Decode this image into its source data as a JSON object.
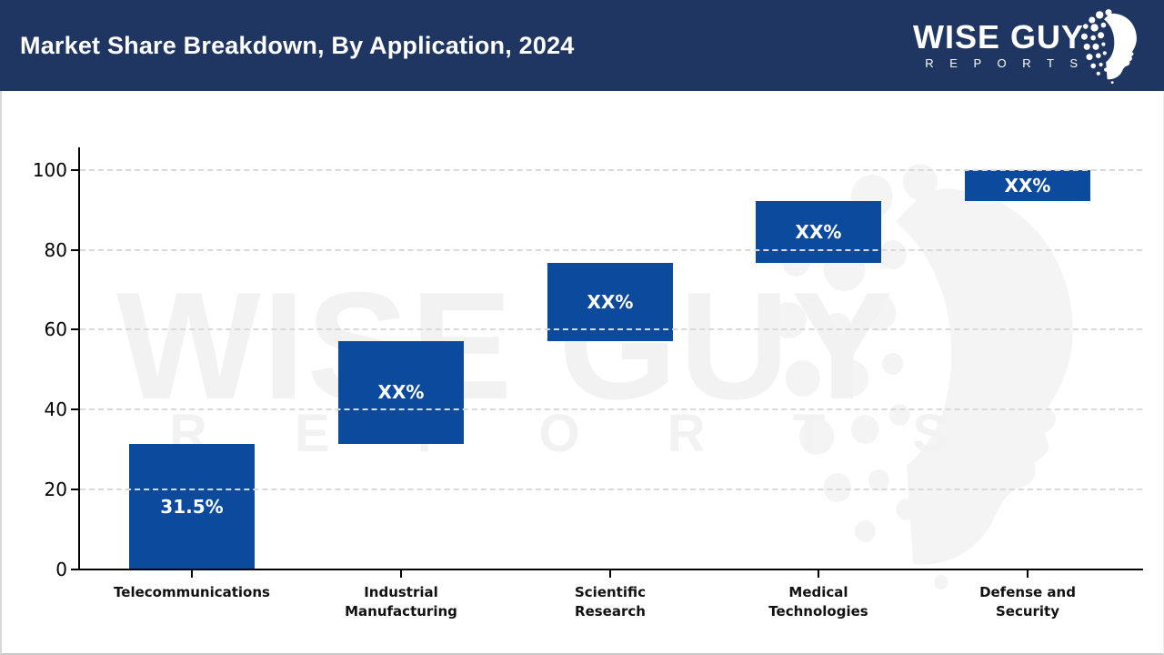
{
  "header": {
    "title": "Market Share Breakdown, By Application, 2024",
    "logo": {
      "name_top": "WISE GUY",
      "name_bottom": "R E P O R T S"
    }
  },
  "watermark": {
    "big_text": "WISE GUY",
    "sub_text": "R E P O R T S"
  },
  "colors": {
    "header_bg": "#203662",
    "bar_fill": "#0c4a9e",
    "grid_line": "#d9d9d9",
    "axis_line": "#000000",
    "bar_label": "#ffffff",
    "watermark": "#f2f2f2"
  },
  "chart_data": {
    "type": "bar",
    "subtype": "waterfall",
    "title": "Market Share Breakdown, By Application, 2024",
    "categories": [
      [
        "Telecommunications"
      ],
      [
        "Industrial",
        "Manufacturing"
      ],
      [
        "Scientific",
        "Research"
      ],
      [
        "Medical",
        "Technologies"
      ],
      [
        "Defense and",
        "Security"
      ]
    ],
    "series": [
      {
        "name": "Market share (%)",
        "segments": [
          {
            "category": "Telecommunications",
            "start": 0,
            "end": 31.5,
            "label": "31.5%"
          },
          {
            "category": "Industrial Manufacturing",
            "start": 31.5,
            "end": 57.2,
            "label": "XX%"
          },
          {
            "category": "Scientific Research",
            "start": 57.2,
            "end": 76.7,
            "label": "XX%"
          },
          {
            "category": "Medical Technologies",
            "start": 76.8,
            "end": 92.2,
            "label": "XX%"
          },
          {
            "category": "Defense and Security",
            "start": 92.2,
            "end": 99.9,
            "label": "XX%"
          }
        ]
      }
    ],
    "xlabel": "",
    "ylabel": "",
    "ylim": [
      0,
      105
    ],
    "yticks": [
      0,
      20,
      40,
      60,
      80,
      100
    ],
    "grid": {
      "horizontal": true,
      "style": "dashed",
      "drawn_above_bars": true
    },
    "legend": null
  }
}
